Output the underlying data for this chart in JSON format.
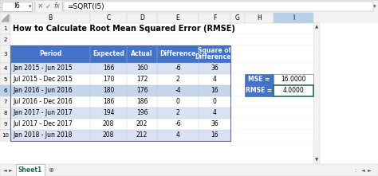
{
  "title": "How to Calculate Root Mean Squared Error (RMSE)",
  "formula_bar_text": "=SQRT(I5)",
  "formula_cell": "I6",
  "headers": [
    "Period",
    "Expected",
    "Actual",
    "Difference",
    "Square of\nDifferences"
  ],
  "rows": [
    [
      "Jan 2015 - Jun 2015",
      166,
      160,
      -6,
      36
    ],
    [
      "Jul 2015 - Dec 2015",
      170,
      172,
      2,
      4
    ],
    [
      "Jan 2016 - Jun 2016",
      180,
      176,
      -4,
      16
    ],
    [
      "Jul 2016 - Dec 2016",
      186,
      186,
      0,
      0
    ],
    [
      "Jan 2017 - Jun 2017",
      194,
      196,
      2,
      4
    ],
    [
      "Jul 2017 - Dec 2017",
      208,
      202,
      -6,
      36
    ],
    [
      "Jan 2018 - Jun 2018",
      208,
      212,
      4,
      16
    ]
  ],
  "mse_value": "16.0000",
  "rmse_value": "4.0000",
  "header_bg": "#4472C4",
  "header_fg": "#FFFFFF",
  "row_bg_even": "#D9E1F2",
  "row_bg_odd": "#FFFFFF",
  "table_border": "#4472C4",
  "sheet_tab_color": "#217346",
  "mse_label_bg": "#4472C4",
  "mse_label_fg": "#FFFFFF",
  "selected_cell_border": "#217346",
  "col_highlight": "#B8D0E8",
  "row_highlight": "#B8D0E8"
}
